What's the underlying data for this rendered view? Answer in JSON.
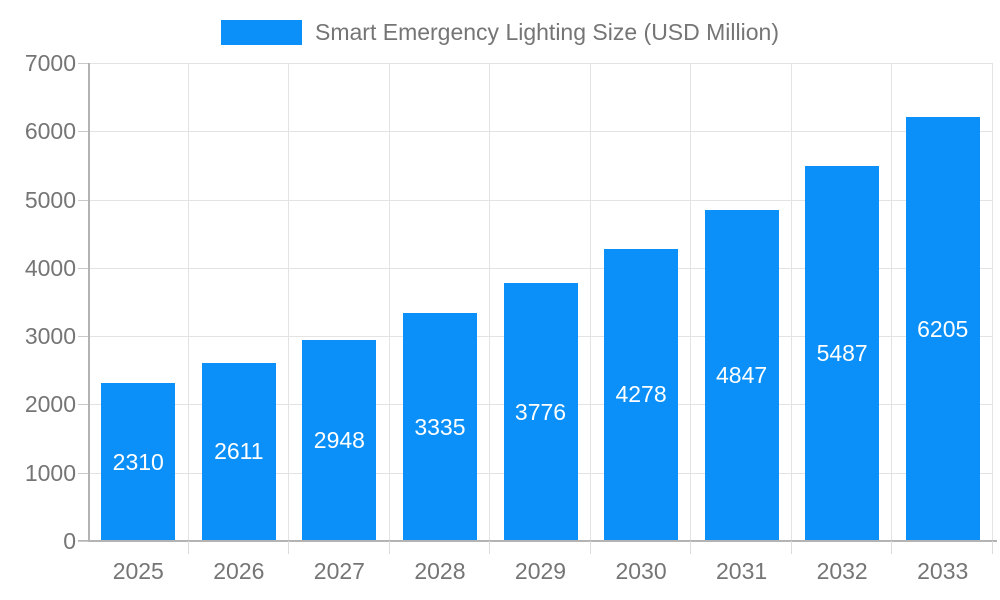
{
  "chart_data": {
    "type": "bar",
    "title": "Smart Emergency Lighting Size (USD Million)",
    "legend": "Smart Emergency Lighting Size (USD Million)",
    "legend_position": "top-center",
    "categories": [
      "2025",
      "2026",
      "2027",
      "2028",
      "2029",
      "2030",
      "2031",
      "2032",
      "2033"
    ],
    "values": [
      2310,
      2611,
      2948,
      3335,
      3776,
      4278,
      4847,
      5487,
      6205
    ],
    "xlabel": "",
    "ylabel": "",
    "ylim": [
      0,
      7000
    ],
    "y_ticks": [
      0,
      1000,
      2000,
      3000,
      4000,
      5000,
      6000,
      7000
    ],
    "grid": true,
    "value_labels": "inside-center",
    "colors": {
      "bar": "#0a90f8",
      "bar_value_text": "#ffffff",
      "axis_text": "#757575",
      "legend_text": "#757575",
      "gridline": "#e3e3e3",
      "axis_line": "#b3b3b3",
      "background": "#ffffff"
    }
  }
}
